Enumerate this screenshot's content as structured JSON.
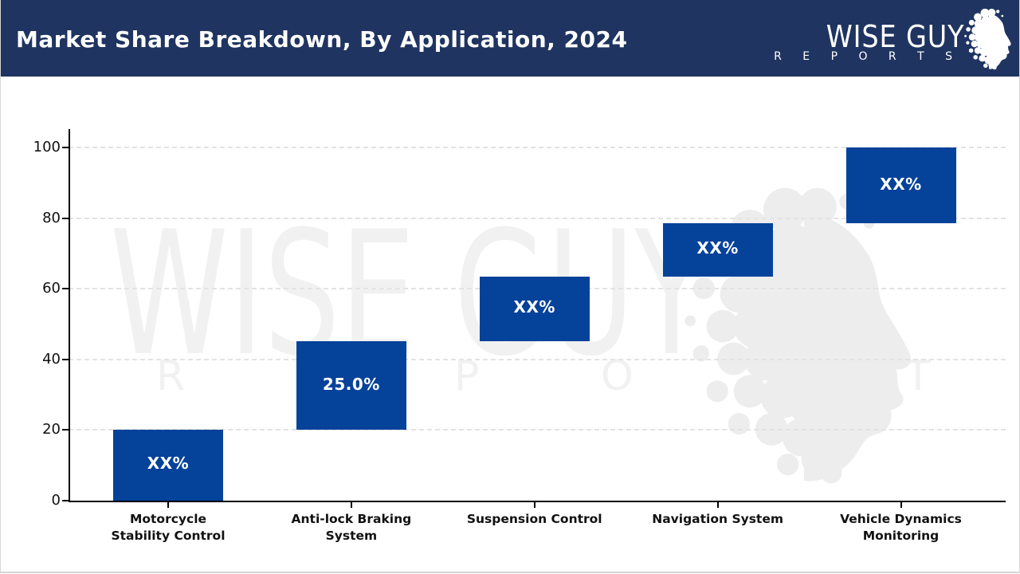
{
  "header": {
    "title": "Market Share Breakdown, By Application, 2024",
    "brand_line1": "WISE GUY",
    "brand_line2": "R E P O R T S",
    "bg_color": "#1f3460"
  },
  "watermark": {
    "line1": "WISE GUY",
    "line2": "R E P O R T S"
  },
  "chart_data": {
    "type": "bar",
    "subtype": "waterfall",
    "title": "Market Share Breakdown, By Application, 2024",
    "categories": [
      "Motorcycle Stability Control",
      "Anti-lock Braking System",
      "Suspension Control",
      "Navigation System",
      "Vehicle Dynamics Monitoring"
    ],
    "category_lines": [
      [
        "Motorcycle",
        "Stability Control"
      ],
      [
        "Anti-lock Braking",
        "System"
      ],
      [
        "Suspension Control"
      ],
      [
        "Navigation System"
      ],
      [
        "Vehicle Dynamics",
        "Monitoring"
      ]
    ],
    "segments": [
      {
        "category": "Motorcycle Stability Control",
        "start": 0,
        "end": 20,
        "label": "XX%"
      },
      {
        "category": "Anti-lock Braking System",
        "start": 20,
        "end": 45,
        "label": "25.0%"
      },
      {
        "category": "Suspension Control",
        "start": 45,
        "end": 63.5,
        "label": "XX%"
      },
      {
        "category": "Navigation System",
        "start": 63.5,
        "end": 78.5,
        "label": "XX%"
      },
      {
        "category": "Vehicle Dynamics Monitoring",
        "start": 78.5,
        "end": 100,
        "label": "XX%"
      }
    ],
    "values_pct": [
      20,
      25,
      18.5,
      15,
      21.5
    ],
    "yticks": [
      0,
      20,
      40,
      60,
      80,
      100
    ],
    "ylim": [
      0,
      105
    ],
    "grid": "horizontal-dashed",
    "legend": "none",
    "bar_color": "#05429a",
    "bar_label_color": "#ffffff",
    "axis_color": "#000000",
    "gridline_color": "#e3e3e3"
  }
}
